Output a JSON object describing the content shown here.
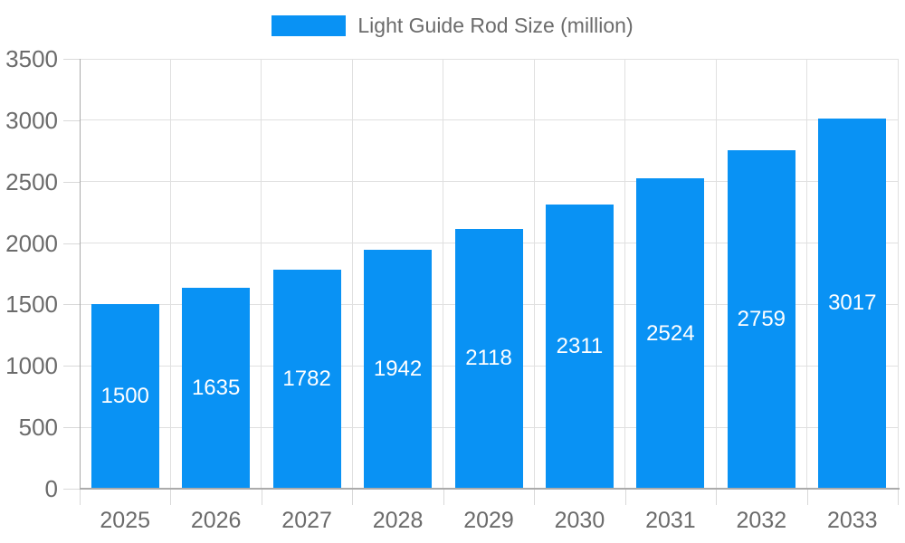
{
  "legend": {
    "label": "Light Guide Rod Size (million)",
    "swatch_color": "#0992f4"
  },
  "chart_data": {
    "type": "bar",
    "title": "Light Guide Rod Size (million)",
    "series_name": "Light Guide Rod Size (million)",
    "categories": [
      "2025",
      "2026",
      "2027",
      "2028",
      "2029",
      "2030",
      "2031",
      "2032",
      "2033"
    ],
    "values": [
      1500,
      1635,
      1782,
      1942,
      2118,
      2311,
      2524,
      2759,
      3017
    ],
    "value_labels": [
      "1500",
      "1635",
      "1782",
      "1942",
      "2118",
      "2311",
      "2524",
      "2759",
      "3017"
    ],
    "ylim": [
      0,
      3500
    ],
    "ytick_step": 500,
    "ytick_labels": [
      "0",
      "500",
      "1000",
      "1500",
      "2000",
      "2500",
      "3000",
      "3500"
    ],
    "grid": true,
    "legend_position": "top-center",
    "colors": {
      "bar": "#0992f4",
      "value_label": "#ffffff",
      "axis_text": "#6b6b6b",
      "grid_line": "#e0e0e0",
      "axis_line": "#ababab",
      "tick_line": "#d9d9d9",
      "background": "#ffffff"
    }
  }
}
